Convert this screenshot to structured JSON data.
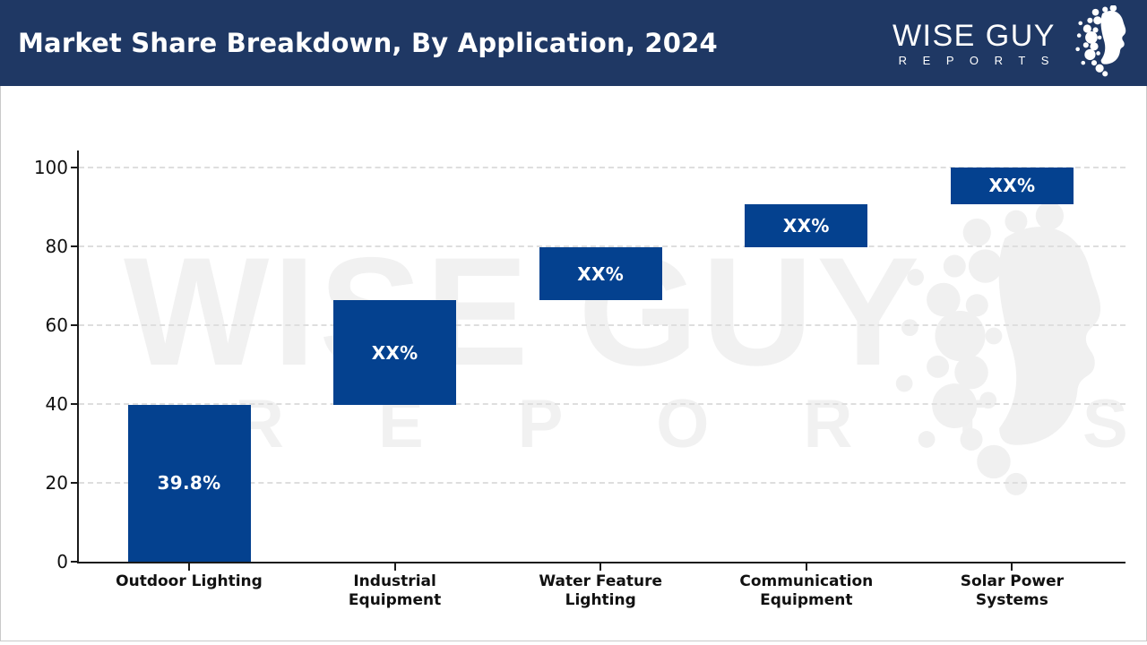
{
  "header": {
    "title": "Market Share Breakdown, By Application, 2024",
    "logo": {
      "line1": "WISE GUY",
      "line2": "R E P O R T S"
    }
  },
  "watermark": {
    "line1": "WISE GUY",
    "line2": "R E P O R T S"
  },
  "colors": {
    "header_background": "#1f3864",
    "bar_fill": "#04418f",
    "bar_label": "#ffffff",
    "axis": "#1a1a1a",
    "gridline": "#dedede",
    "card_border": "#c9c9c9",
    "watermark": "#f1f1f1"
  },
  "chart_data": {
    "type": "bar",
    "subtype": "waterfall",
    "title": "Market Share Breakdown, By Application, 2024",
    "categories": [
      "Outdoor Lighting",
      "Industrial Equipment",
      "Water Feature Lighting",
      "Communication Equipment",
      "Solar Power Systems"
    ],
    "bars": [
      {
        "category": "Outdoor Lighting",
        "start": 0,
        "end": 39.8,
        "label": "39.8%"
      },
      {
        "category": "Industrial Equipment",
        "start": 39.8,
        "end": 66.3,
        "label": "XX%"
      },
      {
        "category": "Water Feature Lighting",
        "start": 66.3,
        "end": 79.8,
        "label": "XX%"
      },
      {
        "category": "Communication Equipment",
        "start": 79.8,
        "end": 90.7,
        "label": "XX%"
      },
      {
        "category": "Solar Power Systems",
        "start": 90.7,
        "end": 100,
        "label": "XX%"
      }
    ],
    "ylim": [
      0,
      100
    ],
    "y_ticks": [
      0,
      20,
      40,
      60,
      80,
      100
    ],
    "xlabel": "",
    "ylabel": "",
    "grid": "horizontal-dashed",
    "legend": "none",
    "bar_color": "#04418f",
    "bar_label_color": "#ffffff"
  }
}
